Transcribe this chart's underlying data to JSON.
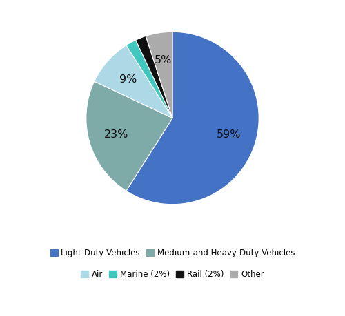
{
  "labels": [
    "Light-Duty Vehicles",
    "Medium-and Heavy-Duty Vehicles",
    "Air",
    "Marine (2%)",
    "Rail (2%)",
    "Other"
  ],
  "values": [
    59,
    23,
    9,
    2,
    2,
    5
  ],
  "colors": [
    "#4472C4",
    "#7EAAA8",
    "#ADD8E6",
    "#40C8C0",
    "#111111",
    "#ABABAB"
  ],
  "pct_labels": [
    "59%",
    "23%",
    "9%",
    "",
    "",
    "5%"
  ],
  "startangle": 90,
  "figsize": [
    5.0,
    4.59
  ],
  "dpi": 100,
  "legend_row1": [
    "Light-Duty Vehicles",
    "Medium-and Heavy-Duty Vehicles"
  ],
  "legend_row1_colors": [
    "#4472C4",
    "#7EAAA8"
  ],
  "legend_row2": [
    "Air",
    "Marine (2%)",
    "Rail (2%)",
    "Other"
  ],
  "legend_row2_colors": [
    "#ADD8E6",
    "#40C8C0",
    "#111111",
    "#ABABAB"
  ],
  "background_color": "#FFFFFF"
}
